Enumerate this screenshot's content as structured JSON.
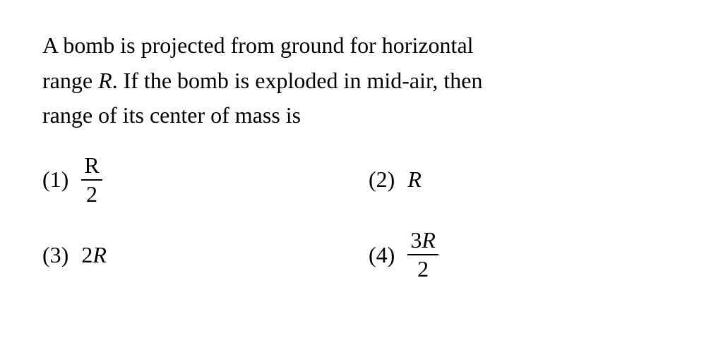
{
  "question": {
    "line1_part1": "A bomb is projected from ground for horizontal",
    "line2_part1": "range ",
    "line2_var": "R",
    "line2_part2": ". If the bomb is exploded in mid-air, then",
    "line3": "range of its center of mass is"
  },
  "options": [
    {
      "number": "(1)",
      "type": "fraction",
      "numerator": "R",
      "denominator": "2",
      "numerator_italic": false
    },
    {
      "number": "(2)",
      "type": "plain",
      "value": "R",
      "italic": true
    },
    {
      "number": "(3)",
      "type": "plain_with_coef",
      "coef": "2",
      "value": "R",
      "italic": true
    },
    {
      "number": "(4)",
      "type": "fraction_with_coef",
      "coef": "3",
      "numerator_var": "R",
      "denominator": "2",
      "numerator_italic": true
    }
  ],
  "styling": {
    "background_color": "#ffffff",
    "text_color": "#000000",
    "font_family": "Times New Roman",
    "question_fontsize": 32,
    "option_fontsize": 32
  }
}
